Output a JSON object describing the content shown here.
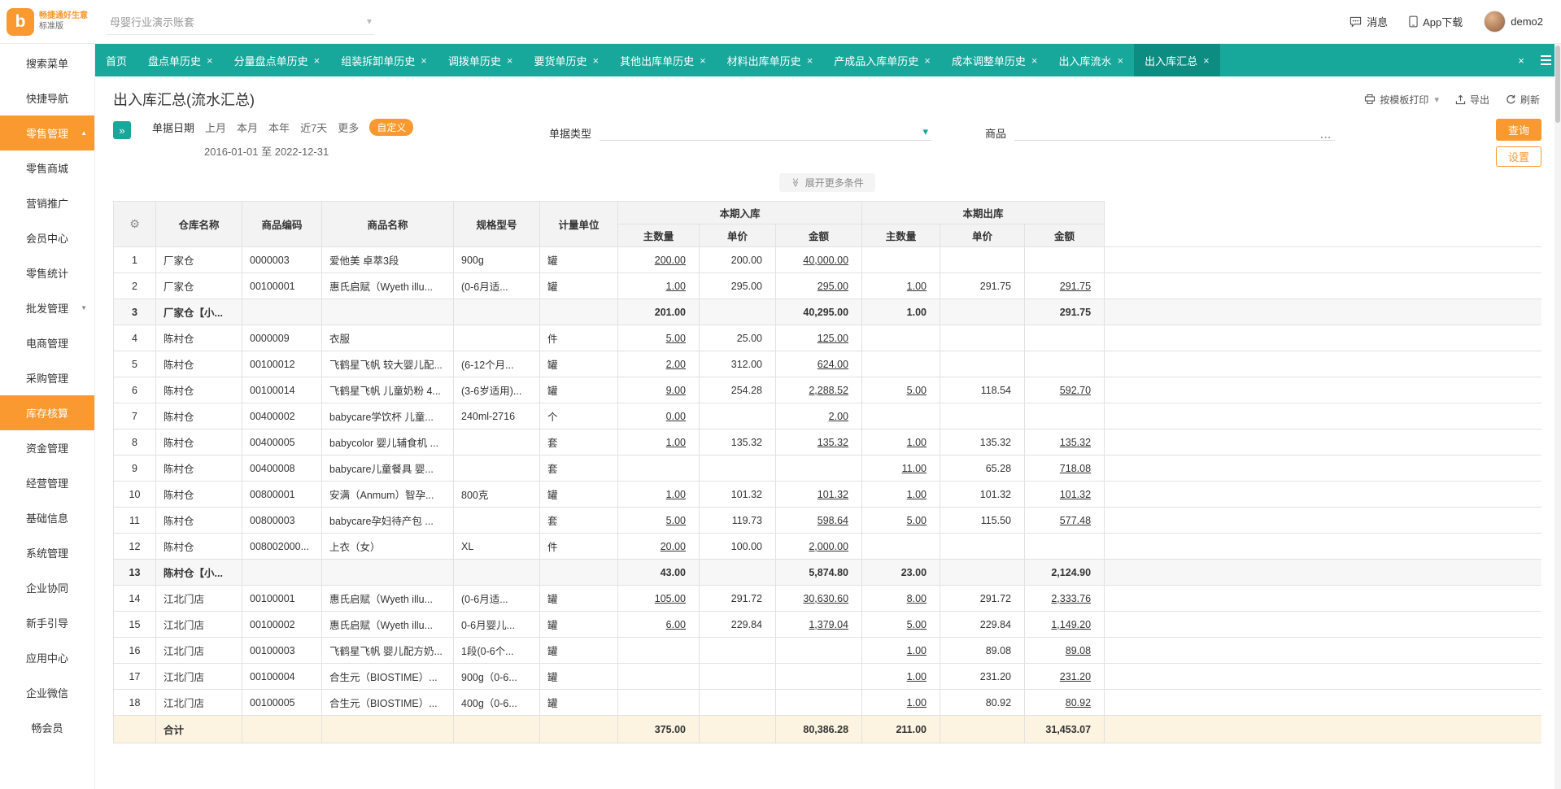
{
  "colors": {
    "teal": "#17A79B",
    "teal_dark": "#0D8C82",
    "orange": "#F9992F"
  },
  "topbar": {
    "logo_title": "畅捷通好生意",
    "logo_badge": "标准版",
    "logo_glyph": "b",
    "account_select": "母婴行业演示账套",
    "messages_label": "消息",
    "app_download_label": "App下载",
    "username": "demo2"
  },
  "sidebar": {
    "items": [
      {
        "label": "搜索菜单",
        "style": "top"
      },
      {
        "label": "快捷导航",
        "style": "top"
      },
      {
        "label": "零售管理",
        "style": "orange",
        "arrow": "up"
      },
      {
        "label": "零售商城",
        "style": "sub"
      },
      {
        "label": "营销推广",
        "style": "sub"
      },
      {
        "label": "会员中心",
        "style": "sub"
      },
      {
        "label": "零售统计",
        "style": "sub"
      },
      {
        "label": "批发管理",
        "style": "top",
        "arrow": "down"
      },
      {
        "label": "电商管理",
        "style": "top"
      },
      {
        "label": "采购管理",
        "style": "top"
      },
      {
        "label": "库存核算",
        "style": "orange"
      },
      {
        "label": "资金管理",
        "style": "top"
      },
      {
        "label": "经营管理",
        "style": "top"
      },
      {
        "label": "基础信息",
        "style": "top"
      },
      {
        "label": "系统管理",
        "style": "top"
      },
      {
        "label": "企业协同",
        "style": "top"
      },
      {
        "label": "新手引导",
        "style": "top"
      },
      {
        "label": "应用中心",
        "style": "top"
      },
      {
        "label": "企业微信",
        "style": "top"
      },
      {
        "label": "畅会员",
        "style": "top"
      }
    ]
  },
  "tabs": [
    {
      "label": "首页",
      "closable": false,
      "active": false
    },
    {
      "label": "盘点单历史",
      "closable": true,
      "active": false
    },
    {
      "label": "分量盘点单历史",
      "closable": true,
      "active": false
    },
    {
      "label": "组装拆卸单历史",
      "closable": true,
      "active": false
    },
    {
      "label": "调拨单历史",
      "closable": true,
      "active": false
    },
    {
      "label": "要货单历史",
      "closable": true,
      "active": false
    },
    {
      "label": "其他出库单历史",
      "closable": true,
      "active": false
    },
    {
      "label": "材料出库单历史",
      "closable": true,
      "active": false
    },
    {
      "label": "产成品入库单历史",
      "closable": true,
      "active": false
    },
    {
      "label": "成本调整单历史",
      "closable": true,
      "active": false
    },
    {
      "label": "出入库流水",
      "closable": true,
      "active": false
    },
    {
      "label": "出入库汇总",
      "closable": true,
      "active": true
    }
  ],
  "page": {
    "title": "出入库汇总(流水汇总)",
    "print_label": "按模板打印",
    "export_label": "导出",
    "refresh_label": "刷新"
  },
  "filters": {
    "date_label": "单据日期",
    "date_quick_options": [
      "上月",
      "本月",
      "本年",
      "近7天",
      "更多"
    ],
    "date_custom_label": "自定义",
    "date_range": "2016-01-01 至 2022-12-31",
    "doc_type_label": "单据类型",
    "product_label": "商品",
    "query_button": "查询",
    "settings_button": "设置",
    "expand_more_label": "展开更多条件"
  },
  "table": {
    "columns": {
      "warehouse": "仓库名称",
      "code": "商品编码",
      "name": "商品名称",
      "spec": "规格型号",
      "unit": "计量单位",
      "in_group": "本期入库",
      "out_group": "本期出库",
      "qty": "主数量",
      "price": "单价",
      "amount": "金额"
    },
    "rows": [
      {
        "num": "1",
        "warehouse": "厂家仓",
        "code": "0000003",
        "name": "爱他美 卓萃3段",
        "spec": "900g",
        "unit": "罐",
        "in_qty": "200.00",
        "in_price": "200.00",
        "in_amt": "40,000.00",
        "out_qty": "",
        "out_price": "",
        "out_amt": "",
        "type": "data"
      },
      {
        "num": "2",
        "warehouse": "厂家仓",
        "code": "00100001",
        "name": "惠氏启赋（Wyeth illu...",
        "spec": "(0-6月适...",
        "unit": "罐",
        "in_qty": "1.00",
        "in_price": "295.00",
        "in_amt": "295.00",
        "out_qty": "1.00",
        "out_price": "291.75",
        "out_amt": "291.75",
        "type": "data"
      },
      {
        "num": "3",
        "warehouse": "厂家仓【小...",
        "code": "",
        "name": "",
        "spec": "",
        "unit": "",
        "in_qty": "201.00",
        "in_price": "",
        "in_amt": "40,295.00",
        "out_qty": "1.00",
        "out_price": "",
        "out_amt": "291.75",
        "type": "subtotal"
      },
      {
        "num": "4",
        "warehouse": "陈村仓",
        "code": "0000009",
        "name": "衣服",
        "spec": "",
        "unit": "件",
        "in_qty": "5.00",
        "in_price": "25.00",
        "in_amt": "125.00",
        "out_qty": "",
        "out_price": "",
        "out_amt": "",
        "type": "data"
      },
      {
        "num": "5",
        "warehouse": "陈村仓",
        "code": "00100012",
        "name": "飞鹤星飞帆 较大婴儿配...",
        "spec": "(6-12个月...",
        "unit": "罐",
        "in_qty": "2.00",
        "in_price": "312.00",
        "in_amt": "624.00",
        "out_qty": "",
        "out_price": "",
        "out_amt": "",
        "type": "data"
      },
      {
        "num": "6",
        "warehouse": "陈村仓",
        "code": "00100014",
        "name": "飞鹤星飞帆 儿童奶粉 4...",
        "spec": "(3-6岁适用)...",
        "unit": "罐",
        "in_qty": "9.00",
        "in_price": "254.28",
        "in_amt": "2,288.52",
        "out_qty": "5.00",
        "out_price": "118.54",
        "out_amt": "592.70",
        "type": "data"
      },
      {
        "num": "7",
        "warehouse": "陈村仓",
        "code": "00400002",
        "name": "babycare学饮杯 儿童...",
        "spec": "240ml-2716",
        "unit": "个",
        "in_qty": "0.00",
        "in_price": "",
        "in_amt": "2.00",
        "out_qty": "",
        "out_price": "",
        "out_amt": "",
        "type": "data"
      },
      {
        "num": "8",
        "warehouse": "陈村仓",
        "code": "00400005",
        "name": "babycolor 婴儿辅食机 ...",
        "spec": "",
        "unit": "套",
        "in_qty": "1.00",
        "in_price": "135.32",
        "in_amt": "135.32",
        "out_qty": "1.00",
        "out_price": "135.32",
        "out_amt": "135.32",
        "type": "data"
      },
      {
        "num": "9",
        "warehouse": "陈村仓",
        "code": "00400008",
        "name": "babycare儿童餐具 婴...",
        "spec": "",
        "unit": "套",
        "in_qty": "",
        "in_price": "",
        "in_amt": "",
        "out_qty": "11.00",
        "out_price": "65.28",
        "out_amt": "718.08",
        "type": "data"
      },
      {
        "num": "10",
        "warehouse": "陈村仓",
        "code": "00800001",
        "name": "安满（Anmum）智孕...",
        "spec": "800克",
        "unit": "罐",
        "in_qty": "1.00",
        "in_price": "101.32",
        "in_amt": "101.32",
        "out_qty": "1.00",
        "out_price": "101.32",
        "out_amt": "101.32",
        "type": "data"
      },
      {
        "num": "11",
        "warehouse": "陈村仓",
        "code": "00800003",
        "name": "babycare孕妇待产包 ...",
        "spec": "",
        "unit": "套",
        "in_qty": "5.00",
        "in_price": "119.73",
        "in_amt": "598.64",
        "out_qty": "5.00",
        "out_price": "115.50",
        "out_amt": "577.48",
        "type": "data"
      },
      {
        "num": "12",
        "warehouse": "陈村仓",
        "code": "008002000...",
        "name": "上衣（女）",
        "spec": "XL",
        "unit": "件",
        "in_qty": "20.00",
        "in_price": "100.00",
        "in_amt": "2,000.00",
        "out_qty": "",
        "out_price": "",
        "out_amt": "",
        "type": "data"
      },
      {
        "num": "13",
        "warehouse": "陈村仓【小...",
        "code": "",
        "name": "",
        "spec": "",
        "unit": "",
        "in_qty": "43.00",
        "in_price": "",
        "in_amt": "5,874.80",
        "out_qty": "23.00",
        "out_price": "",
        "out_amt": "2,124.90",
        "type": "subtotal"
      },
      {
        "num": "14",
        "warehouse": "江北门店",
        "code": "00100001",
        "name": "惠氏启赋（Wyeth illu...",
        "spec": "(0-6月适...",
        "unit": "罐",
        "in_qty": "105.00",
        "in_price": "291.72",
        "in_amt": "30,630.60",
        "out_qty": "8.00",
        "out_price": "291.72",
        "out_amt": "2,333.76",
        "type": "data"
      },
      {
        "num": "15",
        "warehouse": "江北门店",
        "code": "00100002",
        "name": "惠氏启赋（Wyeth illu...",
        "spec": "0-6月婴儿...",
        "unit": "罐",
        "in_qty": "6.00",
        "in_price": "229.84",
        "in_amt": "1,379.04",
        "out_qty": "5.00",
        "out_price": "229.84",
        "out_amt": "1,149.20",
        "type": "data"
      },
      {
        "num": "16",
        "warehouse": "江北门店",
        "code": "00100003",
        "name": "飞鹤星飞帆 婴儿配方奶...",
        "spec": "1段(0-6个...",
        "unit": "罐",
        "in_qty": "",
        "in_price": "",
        "in_amt": "",
        "out_qty": "1.00",
        "out_price": "89.08",
        "out_amt": "89.08",
        "type": "data"
      },
      {
        "num": "17",
        "warehouse": "江北门店",
        "code": "00100004",
        "name": "合生元（BIOSTIME）...",
        "spec": "900g（0-6...",
        "unit": "罐",
        "in_qty": "",
        "in_price": "",
        "in_amt": "",
        "out_qty": "1.00",
        "out_price": "231.20",
        "out_amt": "231.20",
        "type": "data"
      },
      {
        "num": "18",
        "warehouse": "江北门店",
        "code": "00100005",
        "name": "合生元（BIOSTIME）...",
        "spec": "400g（0-6...",
        "unit": "罐",
        "in_qty": "",
        "in_price": "",
        "in_amt": "",
        "out_qty": "1.00",
        "out_price": "80.92",
        "out_amt": "80.92",
        "type": "data"
      }
    ],
    "total": {
      "label": "合计",
      "in_qty": "375.00",
      "in_amt": "80,386.28",
      "out_qty": "211.00",
      "out_amt": "31,453.07"
    }
  }
}
